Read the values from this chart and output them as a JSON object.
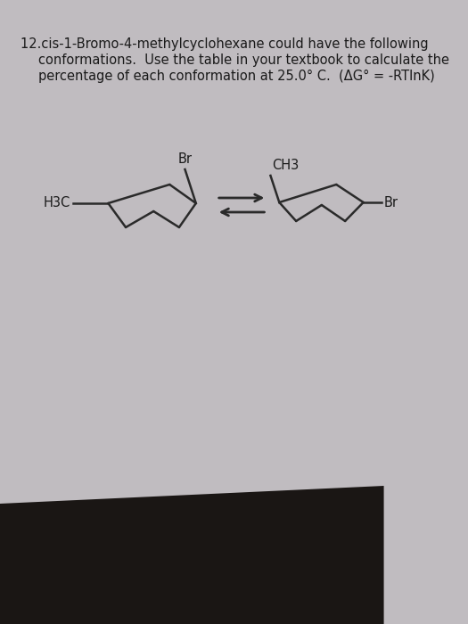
{
  "background_color": "#c0bcc0",
  "bottom_background_color": "#1a1614",
  "title_line1": "12.cis-1-Bromo-4-methylcyclohexane could have the following",
  "title_line2": "conformations.  Use the table in your textbook to calculate the",
  "title_line3": "percentage of each conformation at 25.0° C.  (ΔG° = -RTlnK)",
  "title_fontsize": 10.5,
  "text_color": "#1a1a1a",
  "line_color": "#2a2a2a",
  "label_Br_left": "Br",
  "label_H3C_left": "H3C",
  "label_CH3_right": "CH3",
  "label_Br_right": "Br",
  "fig_width": 5.25,
  "fig_height": 7.0,
  "dpi": 100
}
